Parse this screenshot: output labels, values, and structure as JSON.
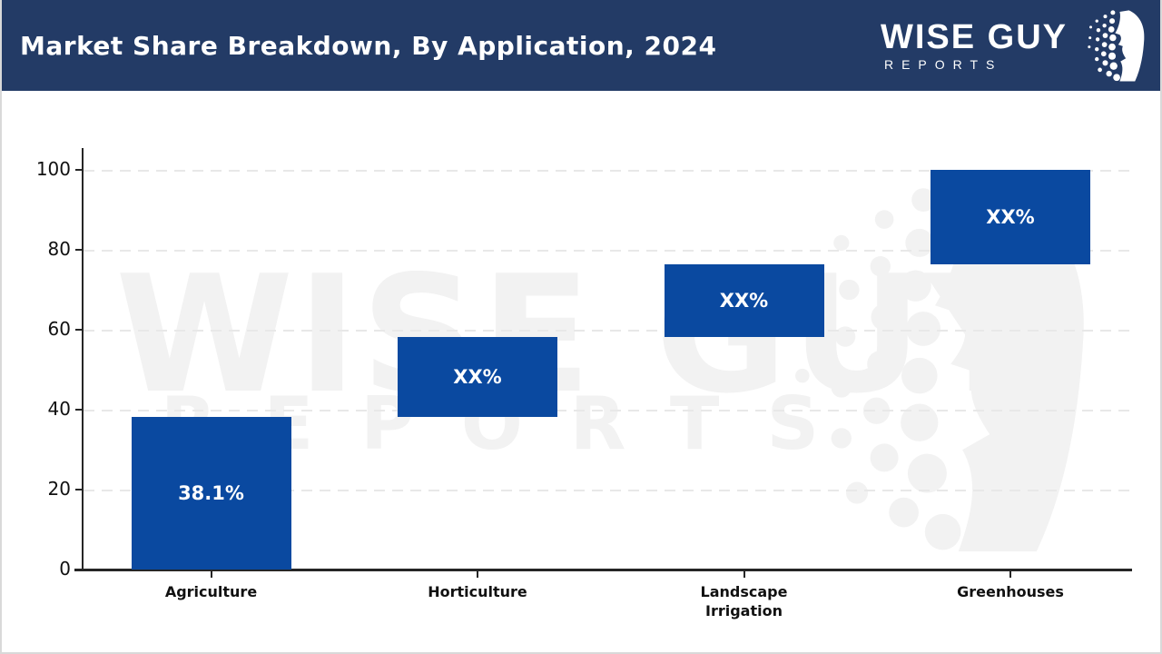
{
  "header": {
    "title": "Market Share Breakdown, By Application, 2024",
    "logo": {
      "line1": "WISE GUY",
      "line2": "REPORTS"
    }
  },
  "watermark": {
    "line1": "WISE GUY",
    "line2": "REPORTS"
  },
  "chart_data": {
    "type": "bar",
    "subtype": "waterfall",
    "title": "Market Share Breakdown, By Application, 2024",
    "categories": [
      "Agriculture",
      "Horticulture",
      "Landscape Irrigation",
      "Greenhouses"
    ],
    "series": [
      {
        "name": "Market Share %",
        "segments": [
          {
            "category": "Agriculture",
            "start": 0,
            "end": 38.1,
            "label": "38.1%"
          },
          {
            "category": "Horticulture",
            "start": 38.1,
            "end": 58.2,
            "label": "XX%"
          },
          {
            "category": "Landscape Irrigation",
            "start": 58.2,
            "end": 76.3,
            "label": "XX%"
          },
          {
            "category": "Greenhouses",
            "start": 76.3,
            "end": 100,
            "label": "XX%"
          }
        ]
      }
    ],
    "ylim": [
      0,
      100
    ],
    "yticks": [
      0,
      20,
      40,
      60,
      80,
      100
    ],
    "grid": "horizontal-dashed",
    "legend": "none",
    "bar_color": "#0A49A0",
    "bar_label_color": "#ffffff",
    "axis_color": "#262626",
    "header_color": "#233B66"
  }
}
